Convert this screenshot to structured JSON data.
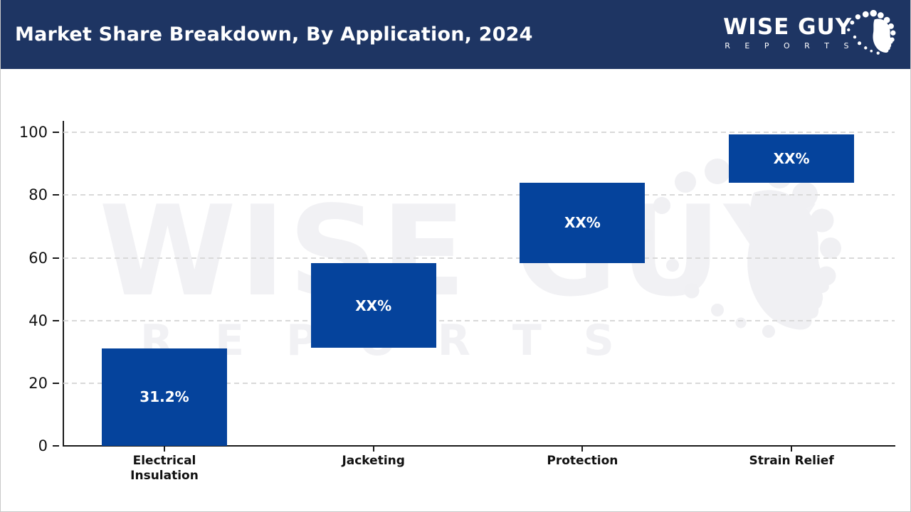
{
  "header": {
    "title": "Market Share Breakdown, By Application, 2024",
    "logo": {
      "wordmark": "WISE GUY",
      "subtext": "R E P O R T S"
    }
  },
  "watermark": {
    "wordmark": "WISE GUY",
    "subtext": "R E P O R T S"
  },
  "chart_data": {
    "type": "bar",
    "subtype": "waterfall-stacked-percent",
    "title": "Market Share Breakdown, By Application, 2024",
    "xlabel": "",
    "ylabel": "",
    "categories": [
      "Electrical Insulation",
      "Jacketing",
      "Protection",
      "Strain Relief"
    ],
    "series": [
      {
        "name": "Market Share (%)",
        "segments": [
          {
            "category": "Electrical Insulation",
            "start": 0,
            "end": 31.2,
            "label": "31.2%"
          },
          {
            "category": "Jacketing",
            "start": 31.2,
            "end": 58.3,
            "label": "XX%"
          },
          {
            "category": "Protection",
            "start": 58.3,
            "end": 84.0,
            "label": "XX%"
          },
          {
            "category": "Strain Relief",
            "start": 84.0,
            "end": 99.5,
            "label": "XX%"
          }
        ]
      }
    ],
    "yticks": [
      0,
      20,
      40,
      60,
      80,
      100
    ],
    "ylim": [
      0,
      105
    ],
    "grid": "horizontal-dashed",
    "legend": "none",
    "bar_color": "#05439c",
    "bar_label_color": "#ffffff"
  },
  "colors": {
    "header_bg": "#1e3563",
    "bar": "#05439c",
    "grid": "#d9d9d9",
    "axis": "#1a1a1a",
    "watermark": "#f1f1f4",
    "frame_border": "#c9c9c9"
  }
}
